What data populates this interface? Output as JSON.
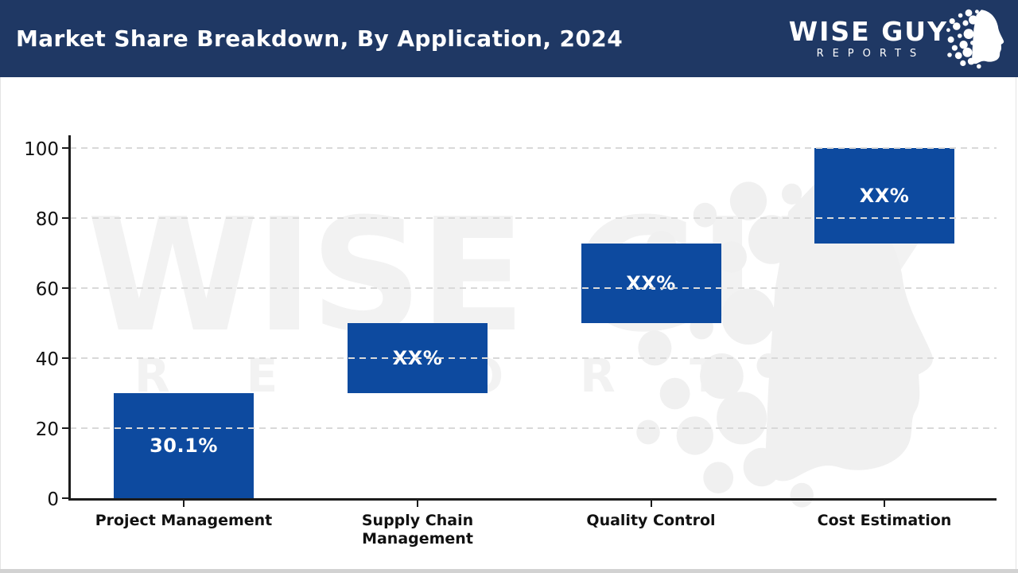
{
  "header": {
    "title": "Market Share Breakdown, By Application, 2024",
    "bg_color": "#1f3864",
    "logo": {
      "wordmark": "WISE GUY",
      "subtext": "REPORTS"
    }
  },
  "watermark": {
    "wordmark": "WISE GUY",
    "subtext": "REPORTS"
  },
  "chart_data": {
    "type": "bar",
    "subtype": "waterfall",
    "title": "Market Share Breakdown, By Application, 2024",
    "xlabel": "",
    "ylabel": "",
    "ylim": [
      0,
      105
    ],
    "y_ticks": [
      0,
      20,
      40,
      60,
      80,
      100
    ],
    "grid": "horizontal dashed",
    "legend": "none",
    "bar_color": "#0d4a9f",
    "categories": [
      "Project Management",
      "Supply Chain\nManagement",
      "Quality Control",
      "Cost Estimation"
    ],
    "segments": [
      {
        "category": "Project Management",
        "start": 0,
        "end": 30.1,
        "label": "30.1%"
      },
      {
        "category": "Supply Chain Management",
        "start": 30.1,
        "end": 50,
        "label": "XX%"
      },
      {
        "category": "Quality Control",
        "start": 50,
        "end": 72.7,
        "label": "XX%"
      },
      {
        "category": "Cost Estimation",
        "start": 72.7,
        "end": 100,
        "label": "XX%"
      }
    ]
  }
}
